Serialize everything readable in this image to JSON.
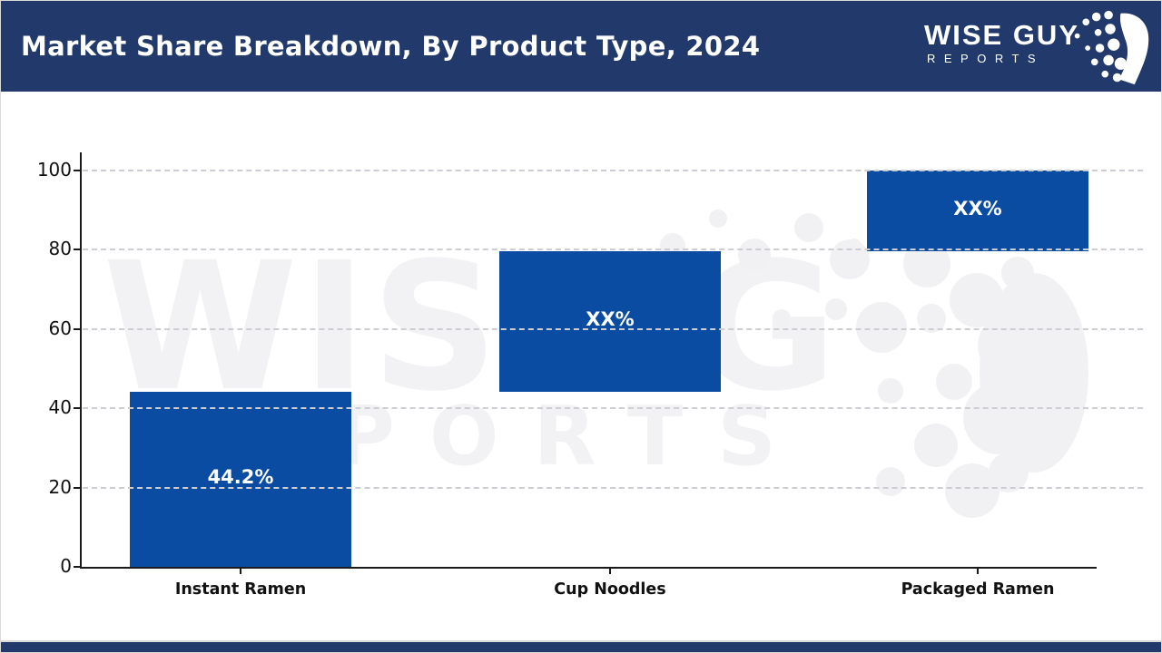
{
  "header": {
    "title": "Market Share Breakdown, By Product Type, 2024",
    "logo": {
      "line1": "WISE GUY",
      "line2": "REPORTS"
    }
  },
  "watermark": {
    "line1": "WISE G",
    "line2": "PORTS"
  },
  "chart_data": {
    "type": "bar",
    "subtype": "waterfall",
    "title": "Market Share Breakdown, By Product Type, 2024",
    "categories": [
      "Instant Ramen",
      "Cup Noodles",
      "Packaged Ramen"
    ],
    "segments": [
      {
        "start": 0,
        "end": 44.2
      },
      {
        "start": 44.2,
        "end": 79.5
      },
      {
        "start": 79.5,
        "end": 100
      }
    ],
    "values": [
      44.2,
      35.3,
      20.5
    ],
    "labels": [
      "44.2%",
      "XX%",
      "XX%"
    ],
    "yticks": [
      0,
      20,
      40,
      60,
      80,
      100
    ],
    "ylim": [
      0,
      100
    ],
    "grid": "horizontal-dashed",
    "legend": "none",
    "bar_color": "#0a4ca1",
    "label_color": "#ffffff"
  },
  "colors": {
    "header_bg": "#213a6b",
    "footer_bg": "#213a6b",
    "bar": "#0a4ca1",
    "gridline": "#ccced3",
    "watermark": "#f2f2f4"
  }
}
